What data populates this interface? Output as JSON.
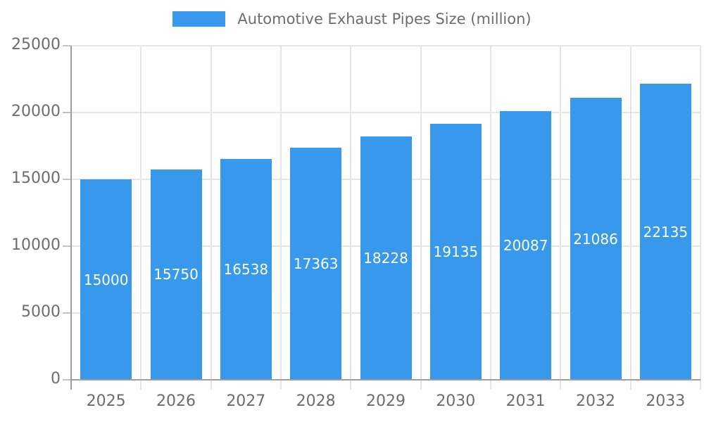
{
  "chart_data": {
    "type": "bar",
    "title": "Automotive Exhaust Pipes Size (million)",
    "legend": {
      "position": "top",
      "entries": [
        "Automotive Exhaust Pipes Size (million)"
      ]
    },
    "categories": [
      "2025",
      "2026",
      "2027",
      "2028",
      "2029",
      "2030",
      "2031",
      "2032",
      "2033"
    ],
    "series": [
      {
        "name": "Automotive Exhaust Pipes Size (million)",
        "values": [
          15000,
          15750,
          16538,
          17363,
          18228,
          19135,
          20087,
          21086,
          22135
        ]
      }
    ],
    "data_labels": [
      "15000",
      "15750",
      "16538",
      "17363",
      "18228",
      "19135",
      "20087",
      "21086",
      "22135"
    ],
    "xlabel": "",
    "ylabel": "",
    "ylim": [
      0,
      25000
    ],
    "y_ticks": [
      0,
      5000,
      10000,
      15000,
      20000,
      25000
    ],
    "y_tick_labels": [
      "0",
      "5000",
      "10000",
      "15000",
      "20000",
      "25000"
    ],
    "grid": true,
    "colors": {
      "bar_fill": "#3899EC",
      "bar_value_text": "#ffffff",
      "axis_text": "#6d6d6d",
      "grid_line": "#e5e5e5",
      "axis_line": "#9e9e9e",
      "tick_mark": "#c4c4c4",
      "background": "#ffffff"
    }
  }
}
